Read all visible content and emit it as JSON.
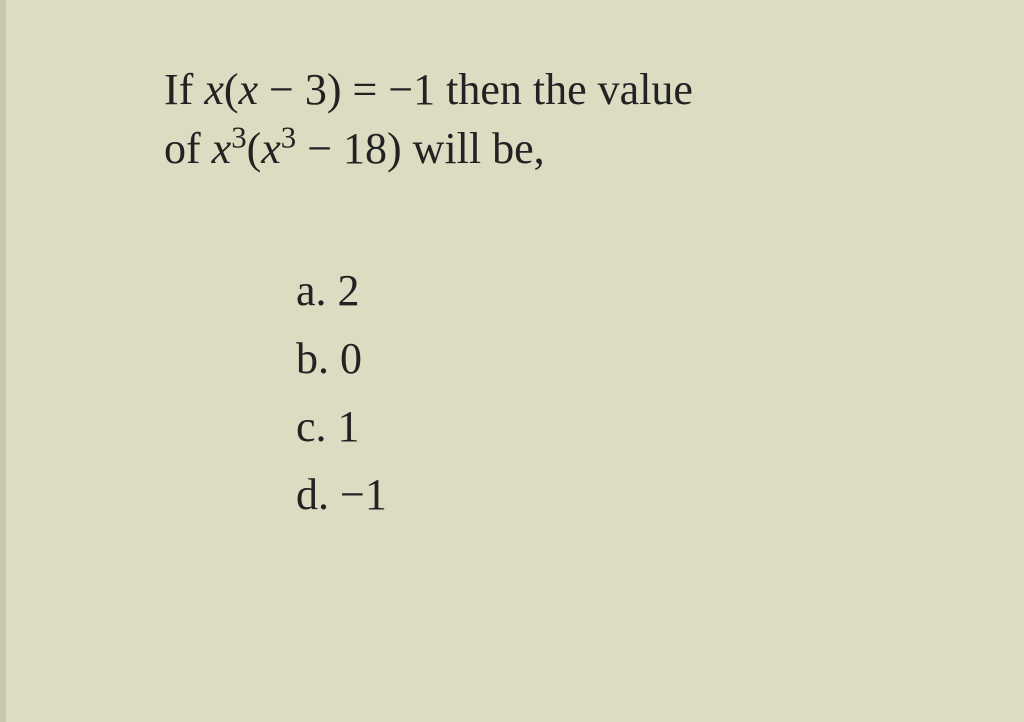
{
  "background_color": "#dcdcc3",
  "text_color": "#222222",
  "font_family": "Times New Roman",
  "question": {
    "prefix": "If ",
    "expr_var1": "x",
    "expr_paren_open": "(",
    "expr_var2": "x",
    "expr_minus": " − 3",
    "expr_paren_close": ")",
    "expr_equals": " = −1",
    "suffix": " then the value",
    "line2_prefix": "of ",
    "line2_var1": "x",
    "line2_sup1": "3",
    "line2_paren_open": "(",
    "line2_var2": "x",
    "line2_sup2": "3",
    "line2_minus": " − 18",
    "line2_paren_close": ")",
    "line2_suffix": " will be,"
  },
  "options": [
    {
      "label": "a.",
      "value": "2"
    },
    {
      "label": "b.",
      "value": "0"
    },
    {
      "label": "c.",
      "value": "1"
    },
    {
      "label": "d.",
      "value": "−1"
    }
  ],
  "font_size_pt": 33,
  "option_font_size_pt": 33
}
